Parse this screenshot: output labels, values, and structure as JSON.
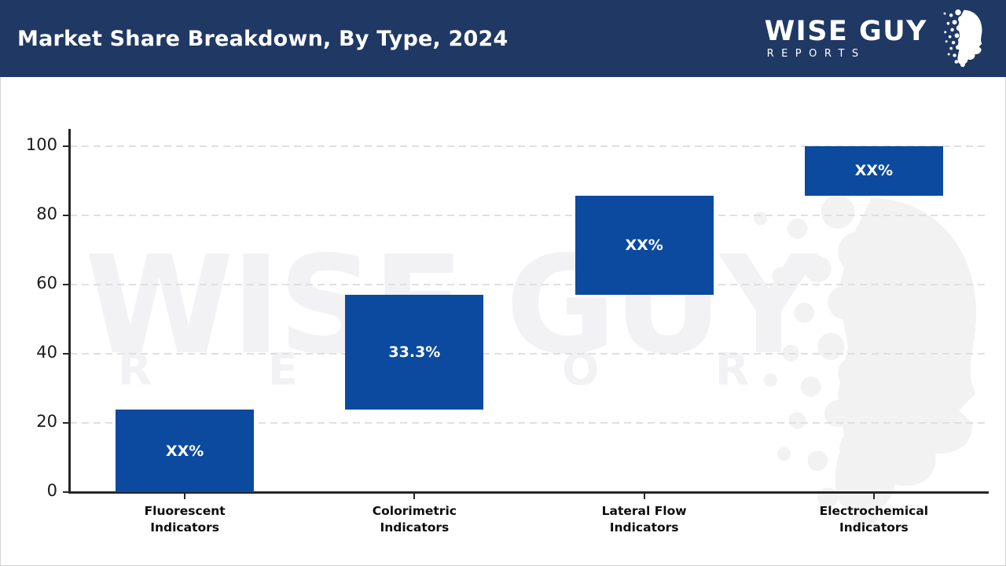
{
  "header": {
    "title": "Market Share Breakdown, By Type, 2024",
    "logo": {
      "line1": "WISE GUY",
      "line2": "REPORTS"
    }
  },
  "watermark": {
    "line1": "WISE GUY",
    "line2": "R E P O R T S"
  },
  "colors": {
    "header_bg": "#1f3864",
    "bar": "#0b4a9f",
    "bar_label": "#ffffff",
    "grid": "#e0e0e0",
    "axis": "#262626",
    "watermark": "#f2f1f3",
    "frame": "#d4d4d4"
  },
  "chart_data": {
    "type": "bar",
    "subtype": "floating-waterfall-segments",
    "title": "Market Share Breakdown, By Type, 2024",
    "categories": [
      "Fluorescent Indicators",
      "Colorimetric Indicators",
      "Lateral Flow Indicators",
      "Electrochemical Indicators"
    ],
    "category_lines": [
      [
        "Fluorescent",
        "Indicators"
      ],
      [
        "Colorimetric",
        "Indicators"
      ],
      [
        "Lateral Flow",
        "Indicators"
      ],
      [
        "Electrochemical",
        "Indicators"
      ]
    ],
    "segments": [
      {
        "category": "Fluorescent Indicators",
        "start": 0,
        "end": 23.8,
        "value": 23.8,
        "label": "XX%"
      },
      {
        "category": "Colorimetric Indicators",
        "start": 23.8,
        "end": 57.1,
        "value": 33.3,
        "label": "33.3%"
      },
      {
        "category": "Lateral Flow Indicators",
        "start": 57.1,
        "end": 85.7,
        "value": 28.6,
        "label": "XX%"
      },
      {
        "category": "Electrochemical Indicators",
        "start": 85.7,
        "end": 100,
        "value": 14.3,
        "label": "XX%"
      }
    ],
    "yticks": [
      0,
      20,
      40,
      60,
      80,
      100
    ],
    "ylim": [
      0,
      105
    ],
    "xlabel": "",
    "ylabel": "",
    "grid": "horizontal-dashed",
    "legend": null
  }
}
